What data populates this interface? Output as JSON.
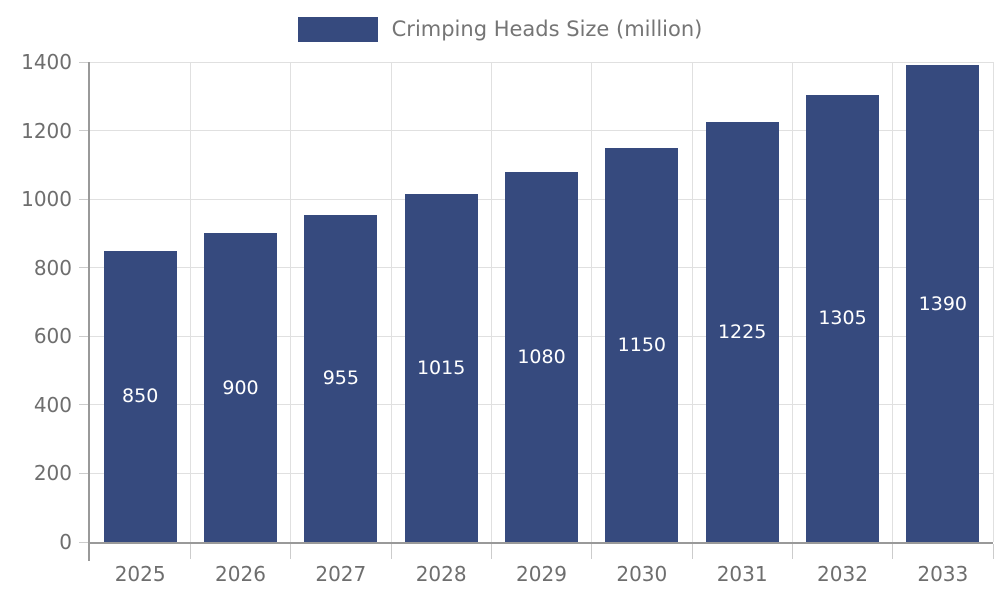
{
  "legend": {
    "label": "Crimping Heads Size (million)"
  },
  "chart_data": {
    "type": "bar",
    "title": "Crimping Heads Size (million)",
    "categories": [
      "2025",
      "2026",
      "2027",
      "2028",
      "2029",
      "2030",
      "2031",
      "2032",
      "2033"
    ],
    "values": [
      850,
      900,
      955,
      1015,
      1080,
      1150,
      1225,
      1305,
      1390
    ],
    "xlabel": "",
    "ylabel": "",
    "ylim": [
      0,
      1400
    ],
    "yticks": [
      0,
      200,
      400,
      600,
      800,
      1000,
      1200,
      1400
    ],
    "grid": true,
    "legend_position": "top-center",
    "bar_label_position": "inside-center",
    "colors": {
      "bar": "#364a7e",
      "bar_label": "#ffffff",
      "axis_text": "#6e6e6e",
      "legend_text": "#757575",
      "gridline": "#e0e0e0",
      "tick": "#cccccc",
      "axis_line": "#999999",
      "background": "#ffffff"
    }
  }
}
